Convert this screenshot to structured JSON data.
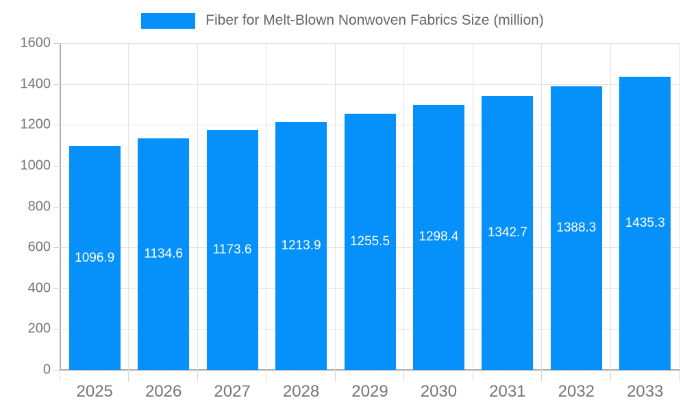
{
  "chart_data": {
    "type": "bar",
    "title": "Fiber for Melt-Blown Nonwoven Fabrics Size (million)",
    "categories": [
      "2025",
      "2026",
      "2027",
      "2028",
      "2029",
      "2030",
      "2031",
      "2032",
      "2033"
    ],
    "values": [
      1096.9,
      1134.6,
      1173.6,
      1213.9,
      1255.5,
      1298.4,
      1342.7,
      1388.3,
      1435.3
    ],
    "xlabel": "",
    "ylabel": "",
    "ylim": [
      0,
      1600
    ],
    "ytick_step": 200,
    "grid": true,
    "legend_position": "top-center",
    "colors": {
      "bar": "#0690fa",
      "value_label": "#ffffff",
      "axis_text": "#757575",
      "legend_text": "#676767",
      "gridline": "#e2e2e2",
      "axis_line": "#ababab"
    }
  }
}
